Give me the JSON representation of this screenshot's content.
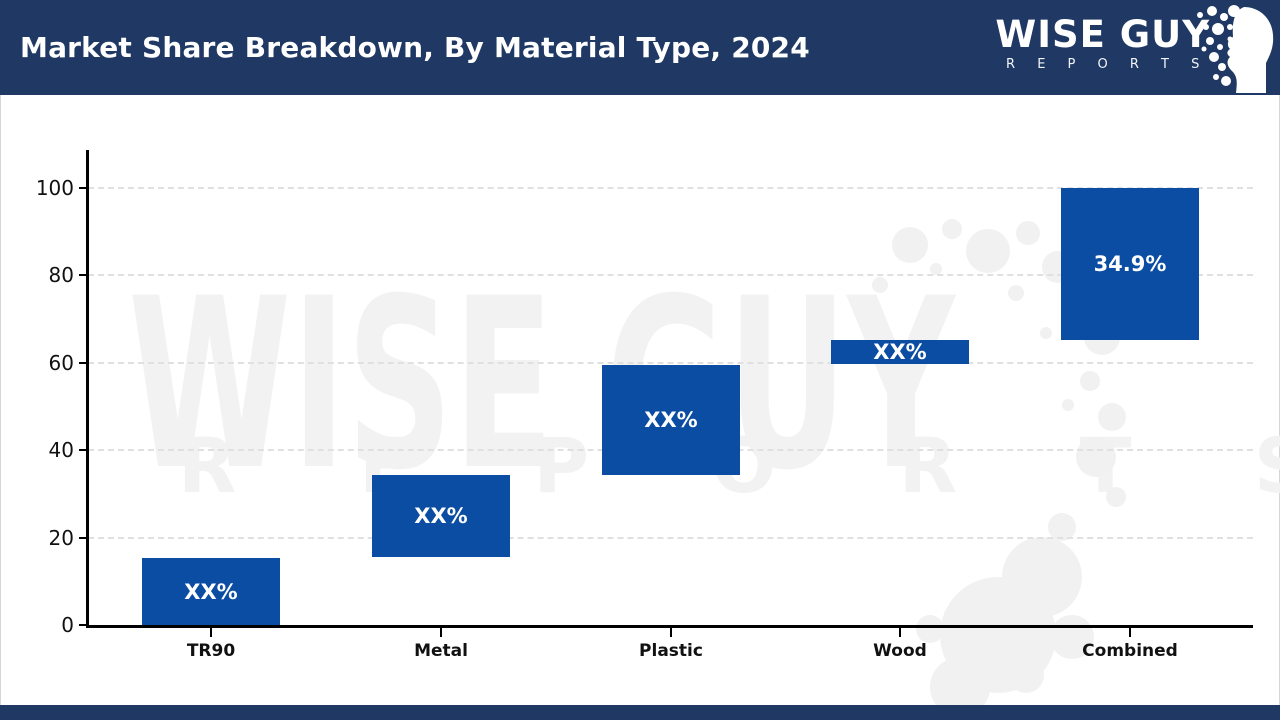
{
  "header": {
    "title": "Market Share Breakdown, By Material Type, 2024",
    "logo_line1": "WISE GUY",
    "logo_line2": "R E P O R T S"
  },
  "watermark": {
    "line1": "WISE GUY",
    "line2": "R E P O R T S"
  },
  "chart_data": {
    "type": "bar",
    "subtype": "waterfall",
    "title": "Market Share Breakdown, By Material Type, 2024",
    "xlabel": "",
    "ylabel": "",
    "categories": [
      "TR90",
      "Metal",
      "Plastic",
      "Wood",
      "Combined"
    ],
    "yticks": [
      0,
      20,
      40,
      60,
      80,
      100
    ],
    "ylim": [
      0,
      105
    ],
    "grid": "horizontal-dashed",
    "legend": "none",
    "series": [
      {
        "name": "Market Share %",
        "segments": [
          {
            "category": "TR90",
            "start": 0,
            "end": 15.3,
            "label": "XX%"
          },
          {
            "category": "Metal",
            "start": 15.6,
            "end": 34.2,
            "label": "XX%"
          },
          {
            "category": "Plastic",
            "start": 34.3,
            "end": 59.4,
            "label": "XX%"
          },
          {
            "category": "Wood",
            "start": 59.6,
            "end": 65.2,
            "label": "XX%"
          },
          {
            "category": "Combined",
            "start": 65.1,
            "end": 100,
            "label": "34.9%"
          }
        ]
      }
    ]
  },
  "colors": {
    "header_bg": "#1f3864",
    "footer_bg": "#1f3864",
    "bar": "#0b4da2",
    "grid": "#e0e0e0",
    "axis": "#000000",
    "watermark": "#f2f2f2",
    "title_text": "#ffffff"
  }
}
